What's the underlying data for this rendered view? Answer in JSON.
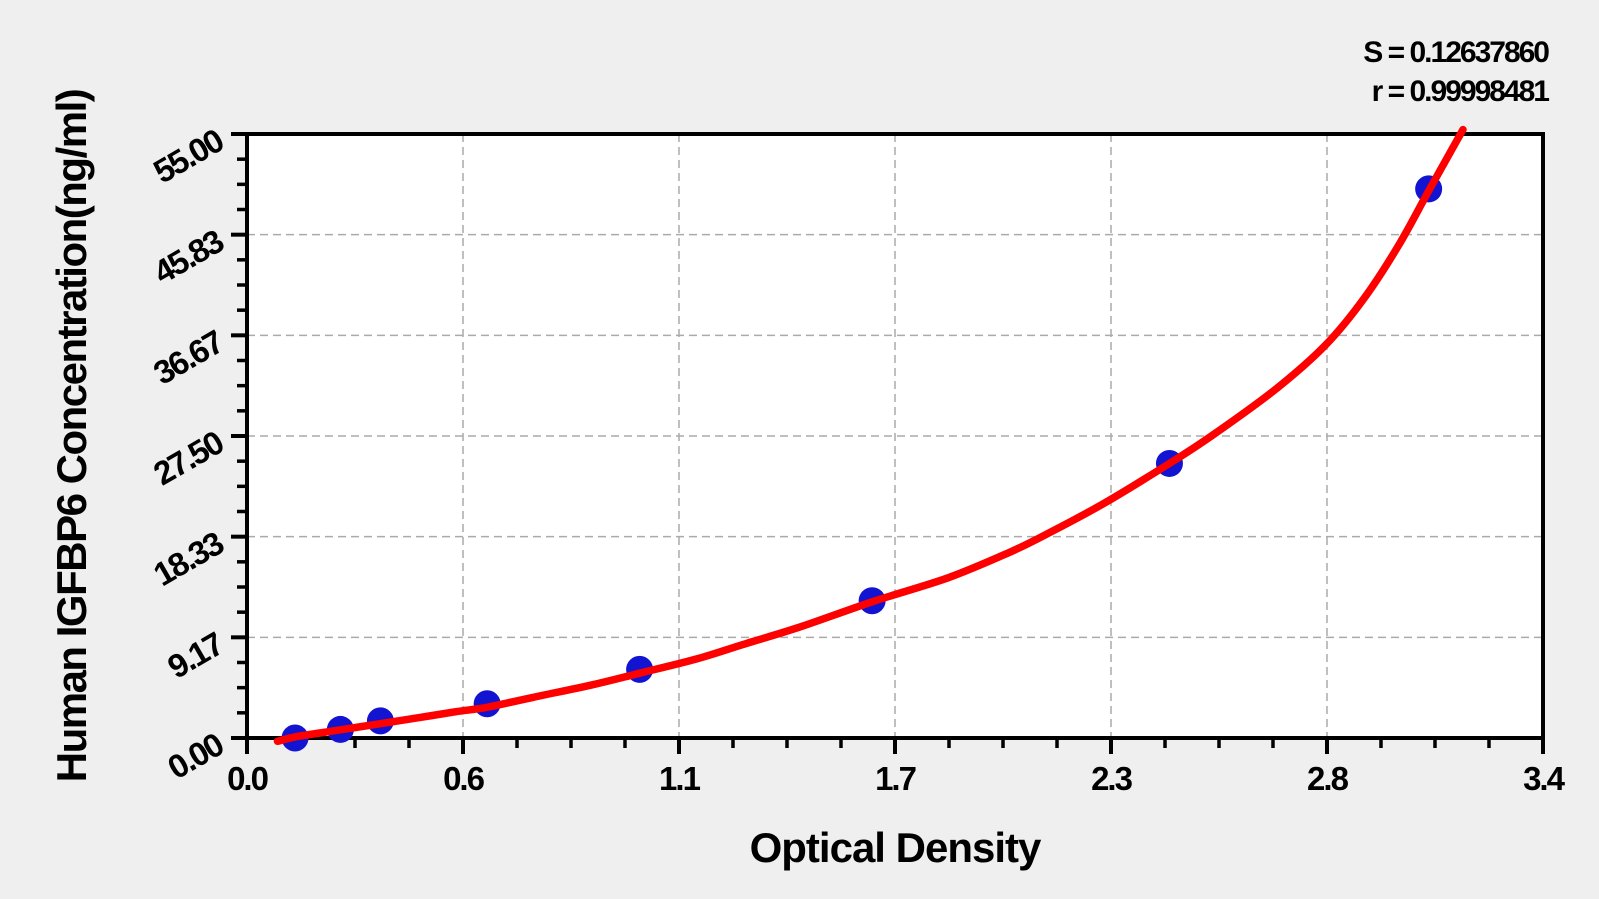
{
  "chart_data": {
    "type": "scatter",
    "title": "",
    "xlabel": "Optical Density",
    "ylabel": "Human IGFBP6 Concentration(ng/ml)",
    "xlim": [
      0,
      3.4
    ],
    "ylim": [
      0,
      55
    ],
    "x_ticks": {
      "values": [
        0,
        0.5667,
        1.1333,
        1.7,
        2.2667,
        2.8333,
        3.4
      ],
      "labels": [
        "0.0",
        "0.6",
        "1.1",
        "1.7",
        "2.3",
        "2.8",
        "3.4"
      ]
    },
    "y_ticks": {
      "values": [
        0,
        9.167,
        18.333,
        27.5,
        36.667,
        45.833,
        55
      ],
      "labels": [
        "0.00",
        "9.17",
        "18.33",
        "27.50",
        "36.67",
        "45.83",
        "55.00"
      ]
    },
    "minor_divisions": 4,
    "grid": {
      "show": true,
      "style": "dashed",
      "at": "major-ticks"
    },
    "annotations": [
      "S = 0.12637860",
      "r = 0.99998481"
    ],
    "fit": {
      "S": "0.12637860",
      "r": "0.99998481"
    },
    "series": [
      {
        "name": "standard-points",
        "type": "scatter",
        "points": [
          {
            "od": 0.126,
            "conc": 0
          },
          {
            "od": 0.245,
            "conc": 0.78
          },
          {
            "od": 0.35,
            "conc": 1.56
          },
          {
            "od": 0.63,
            "conc": 3.12
          },
          {
            "od": 1.03,
            "conc": 6.25
          },
          {
            "od": 1.64,
            "conc": 12.5
          },
          {
            "od": 2.42,
            "conc": 25
          },
          {
            "od": 3.1,
            "conc": 50
          }
        ]
      },
      {
        "name": "fitted-curve",
        "type": "line",
        "points": [
          [
            0.08,
            -0.3
          ],
          [
            0.126,
            0.1
          ],
          [
            0.2,
            0.5
          ],
          [
            0.245,
            0.75
          ],
          [
            0.35,
            1.3
          ],
          [
            0.45,
            1.85
          ],
          [
            0.55,
            2.4
          ],
          [
            0.63,
            2.8
          ],
          [
            0.75,
            3.7
          ],
          [
            0.9,
            4.8
          ],
          [
            1.03,
            5.9
          ],
          [
            1.18,
            7.2
          ],
          [
            1.3,
            8.5
          ],
          [
            1.45,
            10.1
          ],
          [
            1.64,
            12.4
          ],
          [
            1.84,
            14.6
          ],
          [
            2.0,
            16.9
          ],
          [
            2.1,
            18.6
          ],
          [
            2.25,
            21.4
          ],
          [
            2.42,
            25.0
          ],
          [
            2.53,
            27.5
          ],
          [
            2.7,
            31.8
          ],
          [
            2.83,
            35.8
          ],
          [
            2.93,
            40.0
          ],
          [
            3.02,
            44.8
          ],
          [
            3.1,
            49.8
          ],
          [
            3.19,
            55.4
          ]
        ]
      }
    ],
    "colors": {
      "curve": "#ff0000",
      "points": "#1313d2",
      "grid": "#aaaaaa",
      "axis": "#000000",
      "plot_bg": "#ffffff",
      "page_bg": "#efefef",
      "text": "#000000"
    }
  }
}
